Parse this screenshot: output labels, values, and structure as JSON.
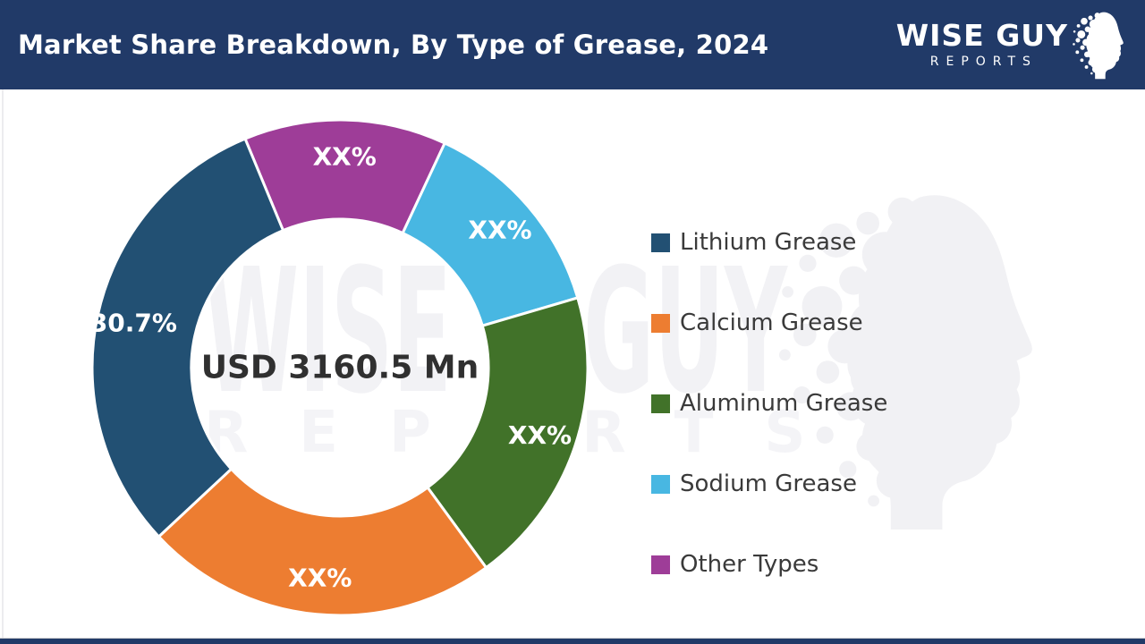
{
  "header": {
    "title": "Market Share Breakdown, By Type of Grease, 2024",
    "logo": {
      "wordmark": "WISE GUY",
      "subtext": "REPORTS"
    }
  },
  "watermark": {
    "wordmark": "WISE GUY",
    "subtext": "REPORTS"
  },
  "chart_data": {
    "type": "donut",
    "title": "Market Share Breakdown, By Type of Grease, 2024",
    "center_label": "USD 3160.5 Mn",
    "start_angle_deg": -22.5,
    "legend_position": "right",
    "label_style": "percent-inside-white-bold",
    "segments": [
      {
        "name": "Lithium Grease",
        "value_pct": 30.7,
        "label": "30.7%",
        "color": "#225073"
      },
      {
        "name": "Calcium Grease",
        "value_pct": 23.1,
        "label": "XX%",
        "color": "#ed7d31"
      },
      {
        "name": "Aluminum Grease",
        "value_pct": 19.5,
        "label": "XX%",
        "color": "#417229"
      },
      {
        "name": "Sodium Grease",
        "value_pct": 13.5,
        "label": "XX%",
        "color": "#48b7e2"
      },
      {
        "name": "Other Types",
        "value_pct": 13.2,
        "label": "XX%",
        "color": "#9e3d98"
      }
    ],
    "draw_order": [
      "Other Types",
      "Sodium Grease",
      "Aluminum Grease",
      "Calcium Grease",
      "Lithium Grease"
    ]
  },
  "colors": {
    "header_bg": "#213a68",
    "footer_bg": "#213a68",
    "center_text": "#303030",
    "legend_text": "#3a3a3a",
    "watermark_tint": "#f2f2f5",
    "segment_gap": "#ffffff"
  }
}
